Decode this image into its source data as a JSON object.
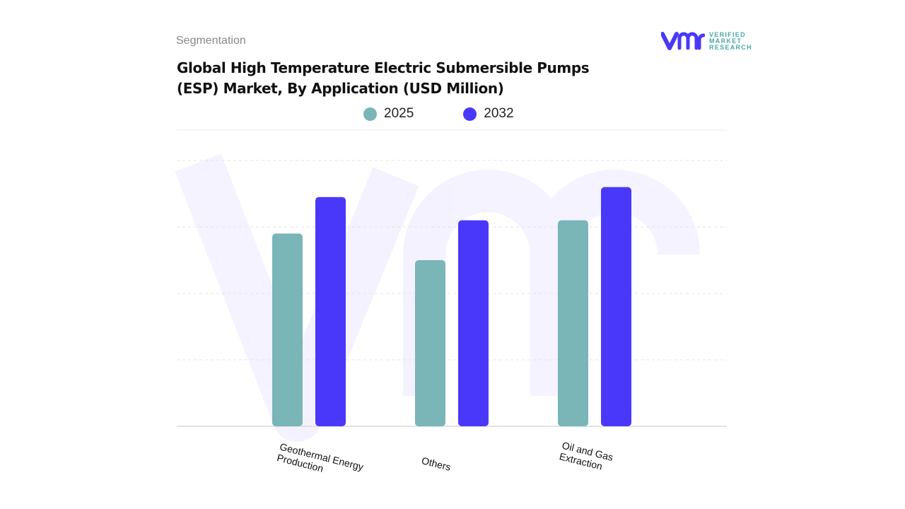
{
  "header": {
    "segment_label": "Segmentation",
    "title": "Global High Temperature Electric Submersible Pumps (ESP) Market, By Application (USD Million)"
  },
  "logo": {
    "line1": "VERIFIED",
    "line2": "MARKET",
    "line3": "RESEARCH",
    "registered": "®"
  },
  "chart_data": {
    "type": "bar",
    "title": "Global High Temperature Electric Submersible Pumps (ESP) Market, By Application (USD Million)",
    "categories": [
      "Geothermal Energy Production",
      "Others",
      "Oil and Gas Extraction"
    ],
    "series": [
      {
        "name": "2025",
        "color": "#7ab5b8",
        "values": [
          2.9,
          2.5,
          3.1
        ]
      },
      {
        "name": "2032",
        "color": "#4a38fa",
        "values": [
          3.45,
          3.1,
          3.6
        ]
      }
    ],
    "ylim": [
      0,
      4
    ],
    "grid": true,
    "legend": "top",
    "xlabel": "",
    "ylabel": ""
  }
}
